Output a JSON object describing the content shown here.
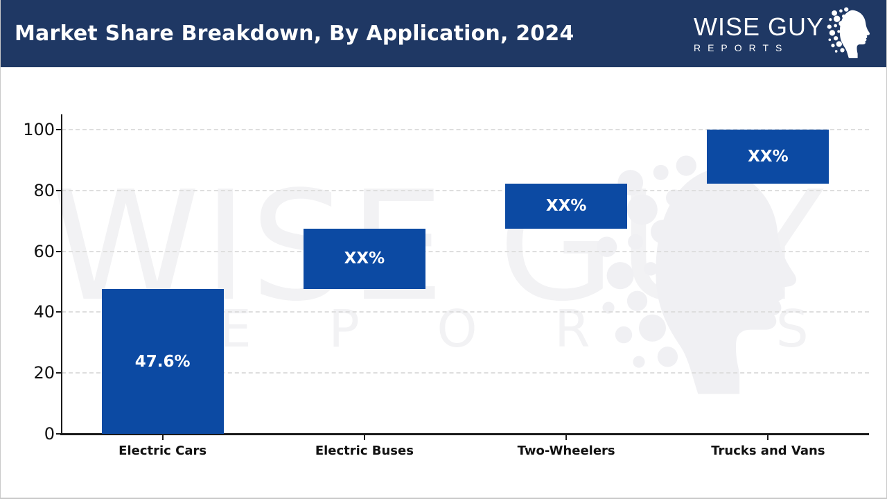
{
  "header": {
    "title": "Market Share Breakdown, By Application, 2024",
    "background_color": "#1f3864",
    "logo": {
      "line1": "WISE GUY",
      "line2": "REPORTS",
      "face_icon": "face-profile-dots"
    }
  },
  "watermark": {
    "line1": "WISE GUY",
    "line2": "R E P O R T S",
    "face_icon": "face-profile-dots",
    "color": "#f2f2f4"
  },
  "chart_data": {
    "type": "bar",
    "subtype": "waterfall",
    "title": "Market Share Breakdown, By Application, 2024",
    "categories": [
      "Electric Cars",
      "Electric Buses",
      "Two-Wheelers",
      "Trucks and Vans"
    ],
    "segments": [
      {
        "category": "Electric Cars",
        "start": 0,
        "end": 47.6,
        "label": "47.6%"
      },
      {
        "category": "Electric Buses",
        "start": 47.6,
        "end": 67.5,
        "label": "XX%"
      },
      {
        "category": "Two-Wheelers",
        "start": 67.5,
        "end": 82.3,
        "label": "XX%"
      },
      {
        "category": "Trucks and Vans",
        "start": 82.3,
        "end": 100,
        "label": "XX%"
      }
    ],
    "xlabel": "",
    "ylabel": "",
    "ylim": [
      0,
      105
    ],
    "yticks": [
      0,
      20,
      40,
      60,
      80,
      100
    ],
    "grid": "horizontal-dashed",
    "legend": "none",
    "bar_color": "#0c4aa3",
    "bar_label_color": "#ffffff",
    "axis_color": "#1a1a1a"
  }
}
